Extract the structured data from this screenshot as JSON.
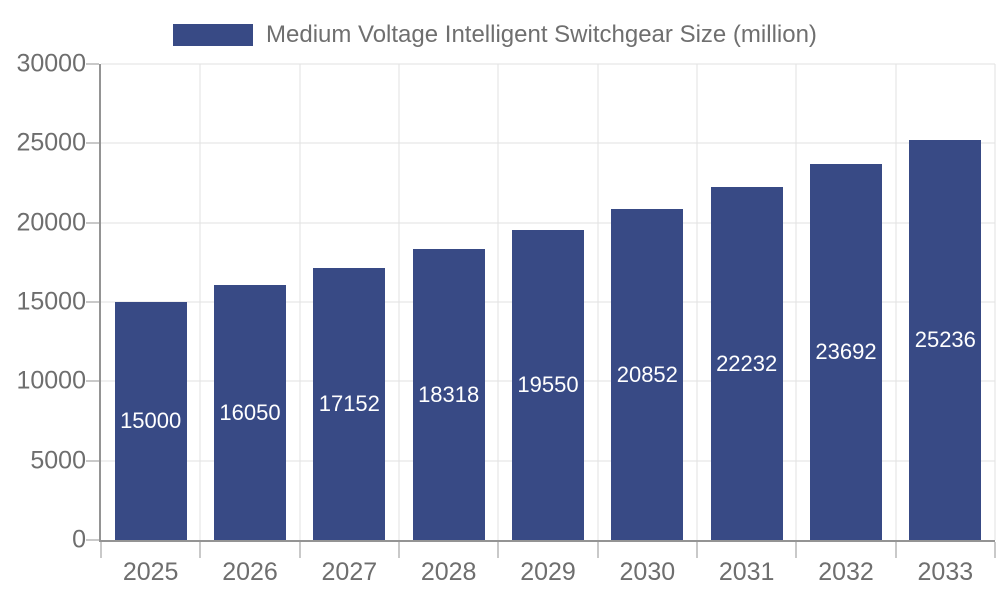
{
  "chart_data": {
    "type": "bar",
    "title": "Medium Voltage Intelligent Switchgear Size (million)",
    "categories": [
      "2025",
      "2026",
      "2027",
      "2028",
      "2029",
      "2030",
      "2031",
      "2032",
      "2033"
    ],
    "values": [
      15000,
      16050,
      17152,
      18318,
      19550,
      20852,
      22232,
      23692,
      25236
    ],
    "xlabel": "",
    "ylabel": "",
    "ylim": [
      0,
      30000
    ],
    "yticks": [
      0,
      5000,
      10000,
      15000,
      20000,
      25000,
      30000
    ],
    "grid": true,
    "legend_position": "top",
    "colors": {
      "bar": "#384A85",
      "value_label": "#ffffff",
      "axis_label": "#6e6e6e",
      "axis_line": "#949494",
      "gridline": "#e2e2e2",
      "tick": "#c9c9c9",
      "background": "#ffffff"
    }
  }
}
